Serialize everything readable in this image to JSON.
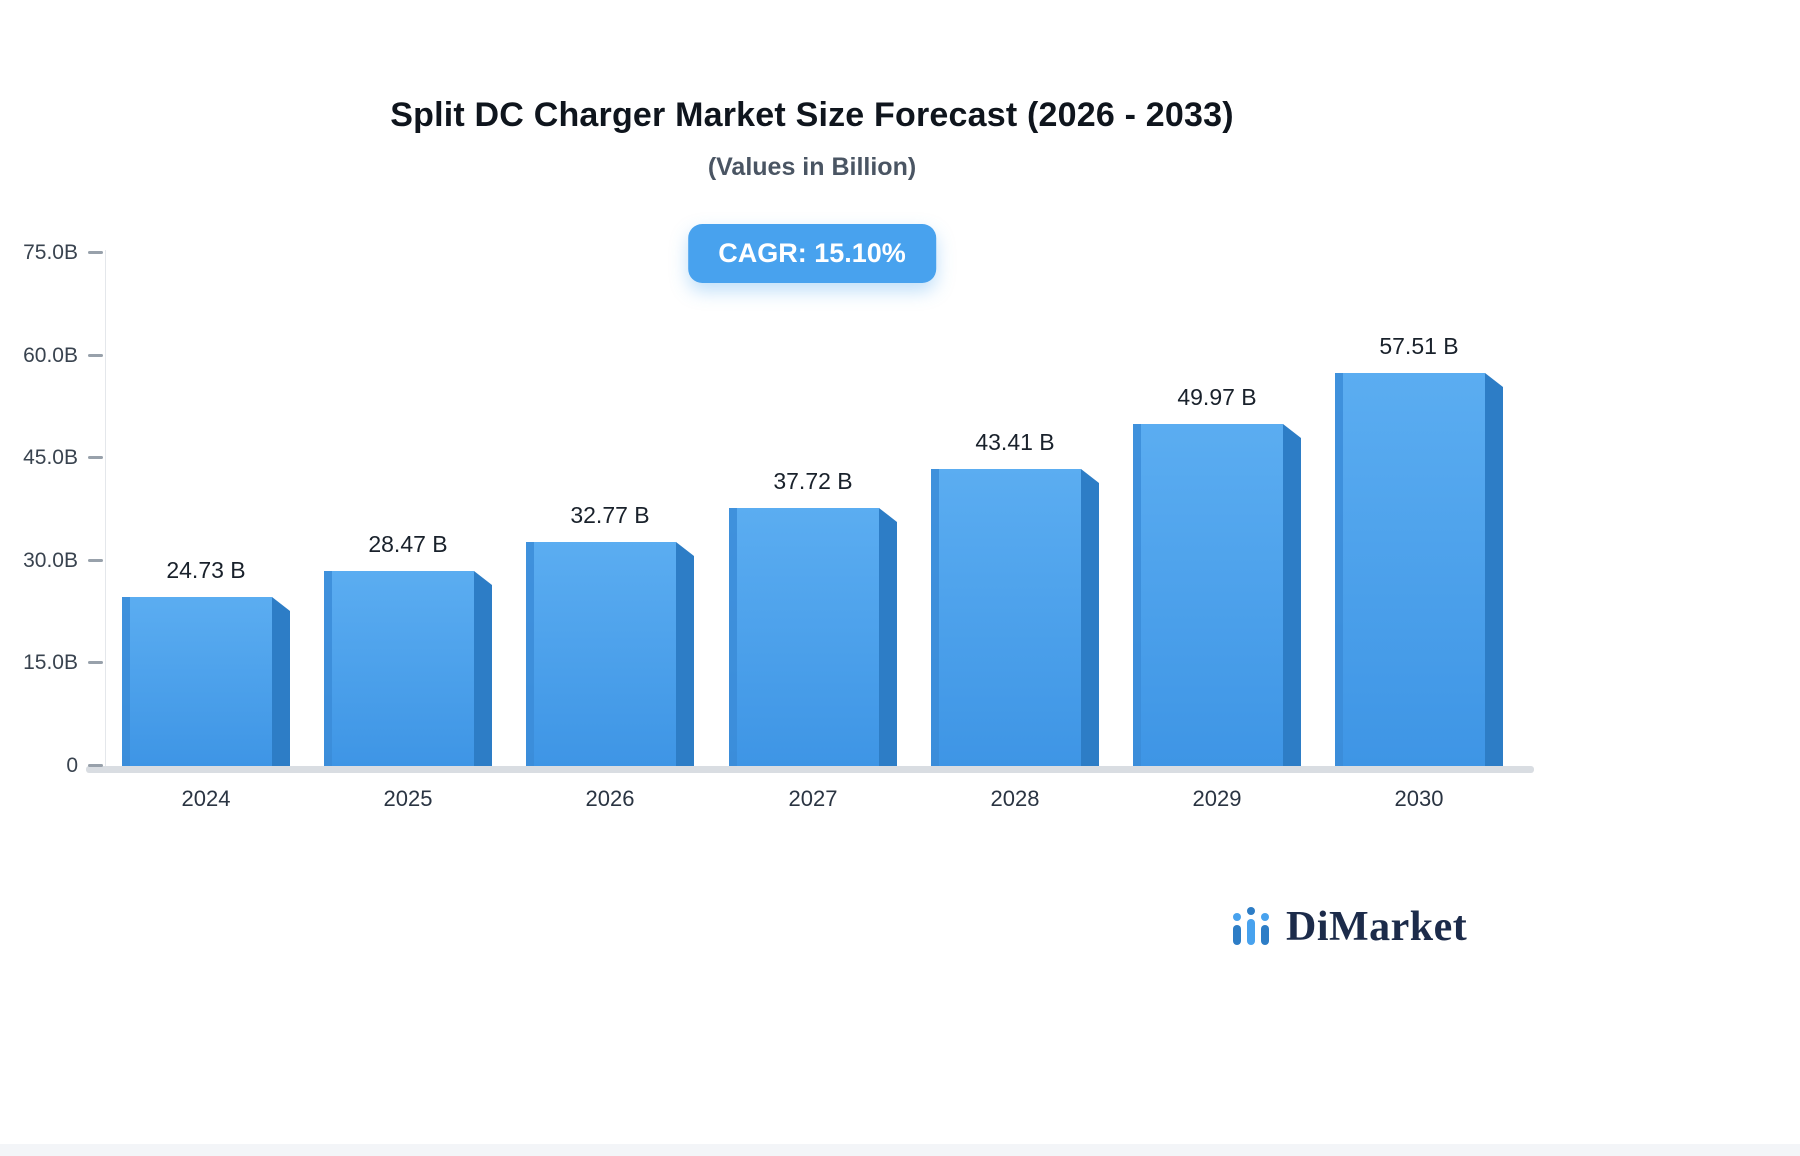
{
  "header": {
    "title": "Split DC Charger Market Size Forecast (2026 - 2033)",
    "subtitle": "(Values in Billion)"
  },
  "badge": {
    "label": "CAGR: 15.10%",
    "bg": "#48a2ee",
    "text_color": "#ffffff"
  },
  "chart_data": {
    "type": "bar",
    "title": "Split DC Charger Market Size Forecast (2026 - 2033)",
    "subtitle": "(Values in Billion)",
    "categories": [
      "2024",
      "2025",
      "2026",
      "2027",
      "2028",
      "2029",
      "2030"
    ],
    "values": [
      24.73,
      28.47,
      32.77,
      37.72,
      43.41,
      49.97,
      57.51
    ],
    "value_labels": [
      "24.73 B",
      "28.47 B",
      "32.77 B",
      "37.72 B",
      "43.41 B",
      "49.97 B",
      "57.51 B"
    ],
    "xlabel": "",
    "ylabel": "",
    "ylim": [
      0,
      75
    ],
    "yticks": [
      {
        "value": 0,
        "label": "0"
      },
      {
        "value": 15,
        "label": "15.0B"
      },
      {
        "value": 30,
        "label": "30.0B"
      },
      {
        "value": 45,
        "label": "45.0B"
      },
      {
        "value": 60,
        "label": "60.0B"
      },
      {
        "value": 75,
        "label": "75.0B"
      }
    ],
    "grid": false,
    "legend": false,
    "bar_color_top": "#5badf1",
    "bar_color_bottom": "#3e95e5",
    "bar_left_edge_color": "#3b8cd8",
    "bar_side_color": "#2d7dc6"
  },
  "footer": {
    "brand": "DiMarket",
    "icon": "bar-chart-logo-icon"
  }
}
